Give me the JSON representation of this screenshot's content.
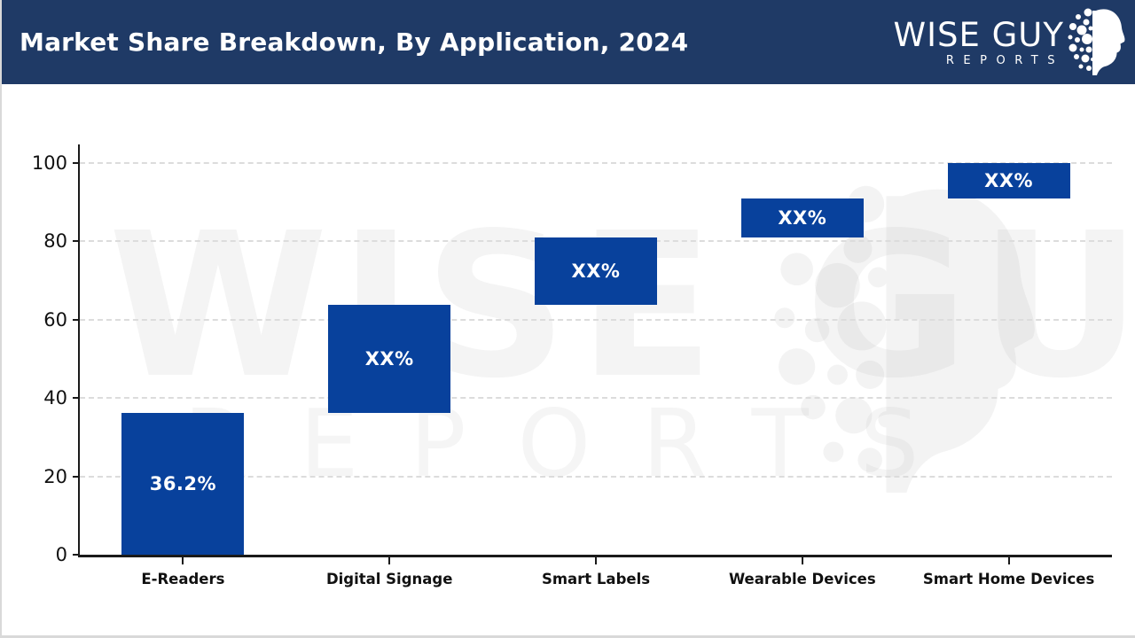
{
  "header": {
    "title": "Market Share Breakdown, By Application, 2024",
    "bg_color": "#1f3a66",
    "logo": {
      "line1": "WISE GUY",
      "line2": "REPORTS"
    }
  },
  "watermark": {
    "line1": "WISE GUY",
    "line2": "REPORTS"
  },
  "chart_data": {
    "type": "bar",
    "subtype": "waterfall",
    "title": "Market Share Breakdown, By Application, 2024",
    "xlabel": "",
    "ylabel": "",
    "ylim": [
      0,
      100
    ],
    "yticks": [
      0,
      20,
      40,
      60,
      80,
      100
    ],
    "grid": true,
    "legend": false,
    "bar_color": "#08419c",
    "label_color": "#ffffff",
    "categories": [
      "E-Readers",
      "Digital Signage",
      "Smart Labels",
      "Wearable Devices",
      "Smart Home Devices"
    ],
    "bars": [
      {
        "category": "E-Readers",
        "start": 0,
        "end": 36.2,
        "label": "36.2%"
      },
      {
        "category": "Digital Signage",
        "start": 36.2,
        "end": 63.8,
        "label": "XX%"
      },
      {
        "category": "Smart Labels",
        "start": 63.8,
        "end": 81.0,
        "label": "XX%"
      },
      {
        "category": "Wearable Devices",
        "start": 81.0,
        "end": 91.0,
        "label": "XX%"
      },
      {
        "category": "Smart Home Devices",
        "start": 91.0,
        "end": 100.0,
        "label": "XX%"
      }
    ]
  }
}
